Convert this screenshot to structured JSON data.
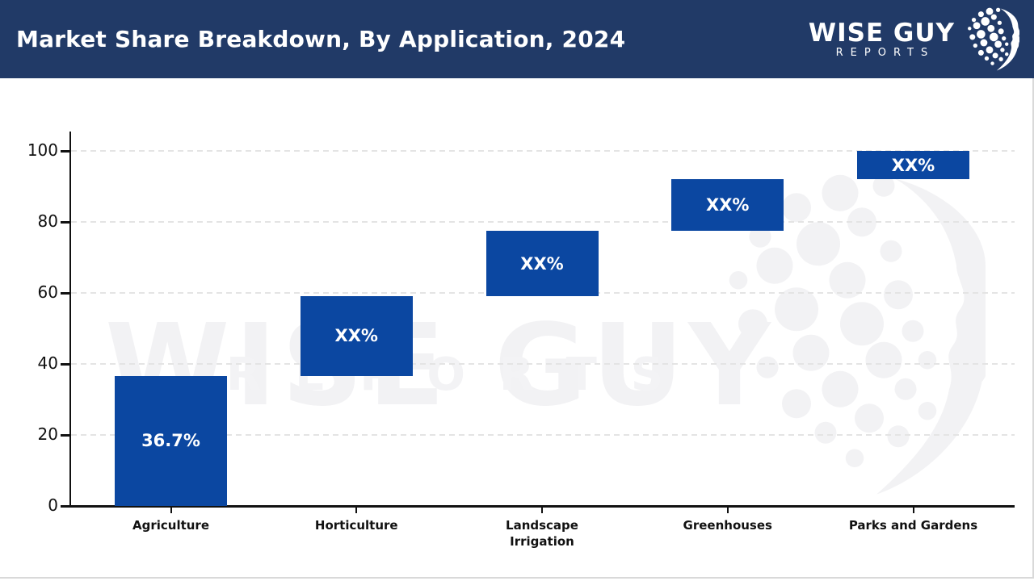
{
  "header": {
    "title": "Market Share Breakdown, By Application, 2024",
    "logo": {
      "name_top": "WISE GUY",
      "name_bottom": "REPORTS"
    }
  },
  "watermark": {
    "text_top": "WISE GUY",
    "text_bottom": "REPORTS"
  },
  "colors": {
    "header_bg": "#213a67",
    "bar": "#0b47a1",
    "bar_label": "#ffffff",
    "axis": "#111111",
    "grid": "#e4e4e4",
    "watermark": "#f2f2f4",
    "page_bg": "#ffffff",
    "edge_line": "#d9d9d9"
  },
  "chart_data": {
    "type": "bar",
    "subtype": "waterfall",
    "title": "Market Share Breakdown, By Application, 2024",
    "categories": [
      "Agriculture",
      "Horticulture",
      "Landscape Irrigation",
      "Greenhouses",
      "Parks and Gardens"
    ],
    "category_label_lines": [
      [
        "Agriculture"
      ],
      [
        "Horticulture"
      ],
      [
        "Landscape",
        "Irrigation"
      ],
      [
        "Greenhouses"
      ],
      [
        "Parks and Gardens"
      ]
    ],
    "bars": [
      {
        "category": "Agriculture",
        "start": 0,
        "end": 36.7,
        "value": 36.7,
        "display_label": "36.7%"
      },
      {
        "category": "Horticulture",
        "start": 36.7,
        "end": 59.0,
        "value": 22.3,
        "display_label": "XX%"
      },
      {
        "category": "Landscape Irrigation",
        "start": 59.0,
        "end": 77.5,
        "value": 18.5,
        "display_label": "XX%"
      },
      {
        "category": "Greenhouses",
        "start": 77.5,
        "end": 92.0,
        "value": 14.5,
        "display_label": "XX%"
      },
      {
        "category": "Parks and Gardens",
        "start": 92.0,
        "end": 100.0,
        "value": 8.0,
        "display_label": "XX%"
      }
    ],
    "ylim": [
      0,
      100
    ],
    "yticks": [
      0,
      20,
      40,
      60,
      80,
      100
    ],
    "xlabel": "",
    "ylabel": "",
    "grid": "horizontal-dashed",
    "legend": "none"
  }
}
